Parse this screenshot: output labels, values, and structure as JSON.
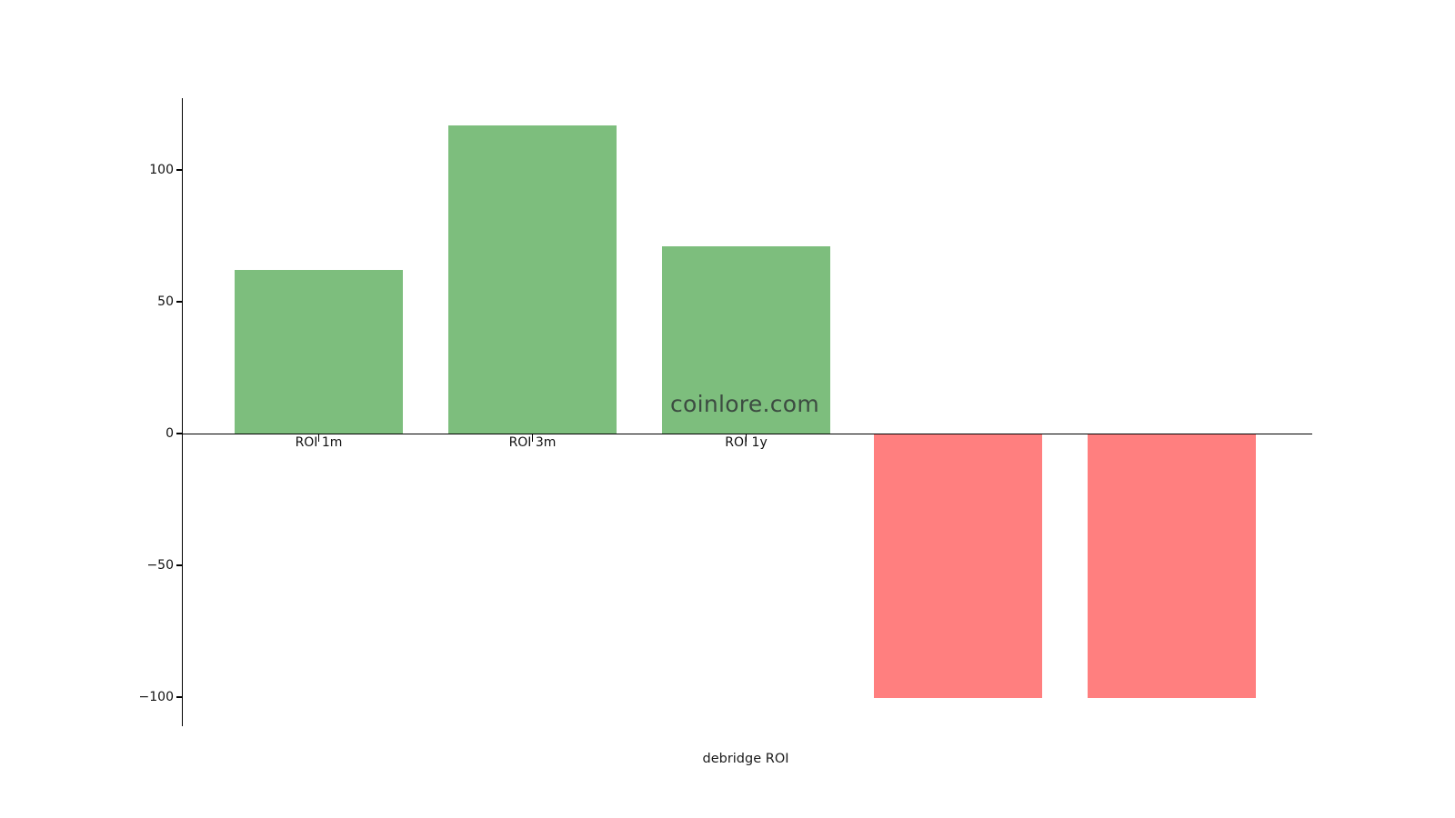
{
  "watermark": {
    "text": "coinlore.com",
    "color": "#3c4b41"
  },
  "chart_data": {
    "type": "bar",
    "title": "",
    "xlabel": "debridge ROI",
    "ylabel": "",
    "categories": [
      "ROI 1m",
      "ROI 3m",
      "ROI 1y",
      "",
      ""
    ],
    "values": [
      62,
      117,
      71,
      -100,
      -100
    ],
    "series": [
      {
        "name": "debridge ROI",
        "values": [
          62,
          117,
          71,
          -100,
          -100
        ]
      }
    ],
    "colors": {
      "positive": "#7dbe7d",
      "negative": "#ff7f7f",
      "axis": "#000000",
      "tick_text": "#111111"
    },
    "yticks": [
      100,
      50,
      0,
      -50,
      -100
    ],
    "ytick_labels": [
      "100",
      "50",
      "0",
      "−50",
      "−100"
    ],
    "ylim": [
      -110,
      128
    ],
    "grid": false,
    "legend_position": "none",
    "background": "#ffffff"
  }
}
